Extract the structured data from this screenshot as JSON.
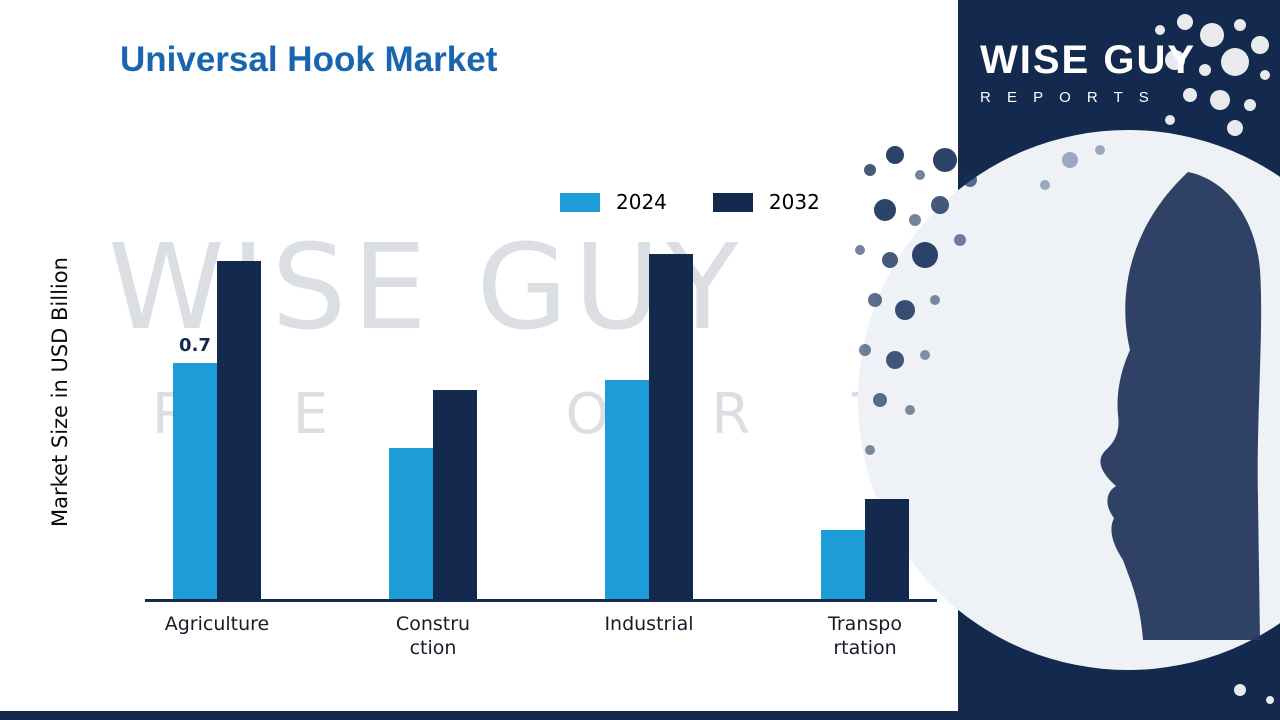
{
  "title": "Universal Hook Market",
  "ylabel": "Market Size in USD Billion",
  "watermark": {
    "line1": "WISE GUY",
    "line2": "R E P O R T S"
  },
  "logo": {
    "name": "WISE GUY",
    "sub": "R E P O R T S"
  },
  "legend": [
    {
      "label": "2024",
      "color": "#1e9cd8"
    },
    {
      "label": "2032",
      "color": "#13294e"
    }
  ],
  "chart_data": {
    "type": "bar",
    "title": "Universal Hook Market",
    "xlabel": "",
    "ylabel": "Market Size in USD Billion",
    "categories": [
      "Agriculture",
      "Construction",
      "Industrial",
      "Transportation"
    ],
    "categories_display": [
      [
        "Agriculture"
      ],
      [
        "Constru",
        "ction"
      ],
      [
        "Industrial"
      ],
      [
        "Transpo",
        "rtation"
      ]
    ],
    "series": [
      {
        "name": "2024",
        "color": "#1e9cd8",
        "values": [
          0.7,
          0.45,
          0.65,
          0.21
        ]
      },
      {
        "name": "2032",
        "color": "#13294e",
        "values": [
          1.0,
          0.62,
          1.02,
          0.3
        ]
      }
    ],
    "bar_labels": [
      {
        "series_index": 0,
        "category_index": 0,
        "text": "0.7"
      }
    ],
    "ylim": [
      0,
      1.1
    ],
    "grid": false,
    "legend_position": "top"
  },
  "colors": {
    "accent_blue": "#1e9cd8",
    "navy": "#13294e",
    "title_blue": "#1a66ae",
    "watermark_gray": "#d3d8de",
    "circle_light": "#eef1f5"
  }
}
